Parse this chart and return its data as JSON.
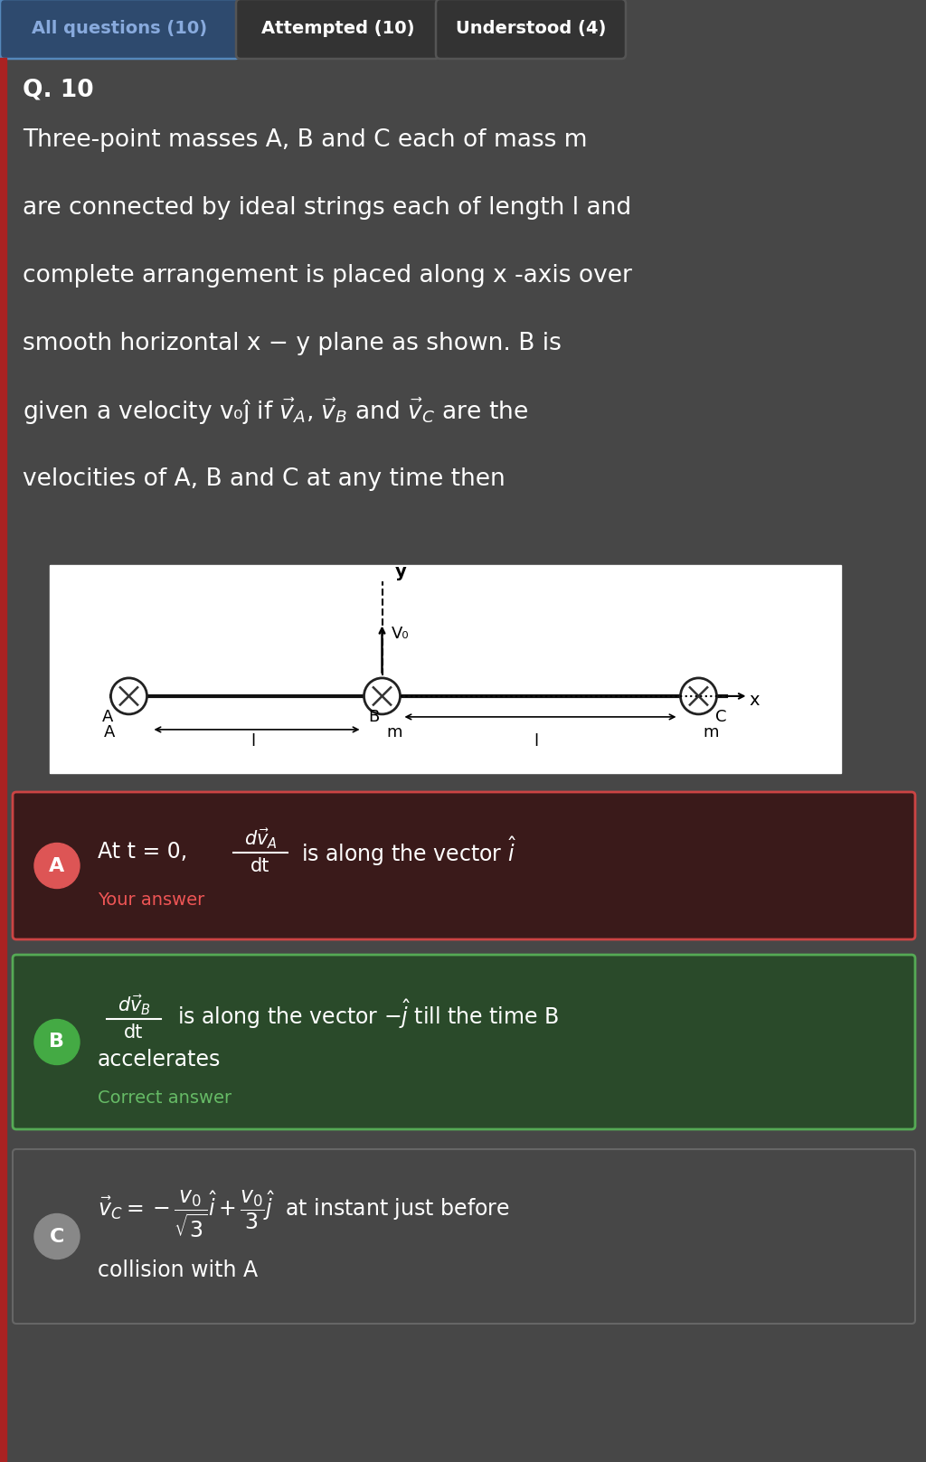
{
  "bg_color": "#474747",
  "tab_active_color": "#2e4a6e",
  "tab_active_border": "#5588bb",
  "tab_active_text": "#88aadd",
  "tab_inactive_bg": "#333333",
  "tab_inactive_text": "#ffffff",
  "tab_labels": [
    "All questions (10)",
    "Attempted (10)",
    "Understood (4)"
  ],
  "question_num": "Q. 10",
  "q_lines": [
    "Three-point masses A, B and C each of mass m",
    "are connected by ideal strings each of length l and",
    "complete arrangement is placed along x -axis over",
    "smooth horizontal x − y plane as shown. B is",
    "given a velocity v₀ĵ if $\\vec{v}_A$, $\\vec{v}_B$ and $\\vec{v}_C$ are the",
    "velocities of A, B and C at any time then"
  ],
  "opt_A_bg": "#3a1a1a",
  "opt_A_border": "#cc4444",
  "opt_A_circle": "#dd5555",
  "opt_B_bg": "#2a4a2a",
  "opt_B_border": "#55aa55",
  "opt_B_circle": "#44aa44",
  "opt_C_bg": "#474747",
  "opt_C_border": "#666666",
  "opt_C_circle": "#888888",
  "red_text": "#ee5555",
  "green_text": "#66bb66"
}
